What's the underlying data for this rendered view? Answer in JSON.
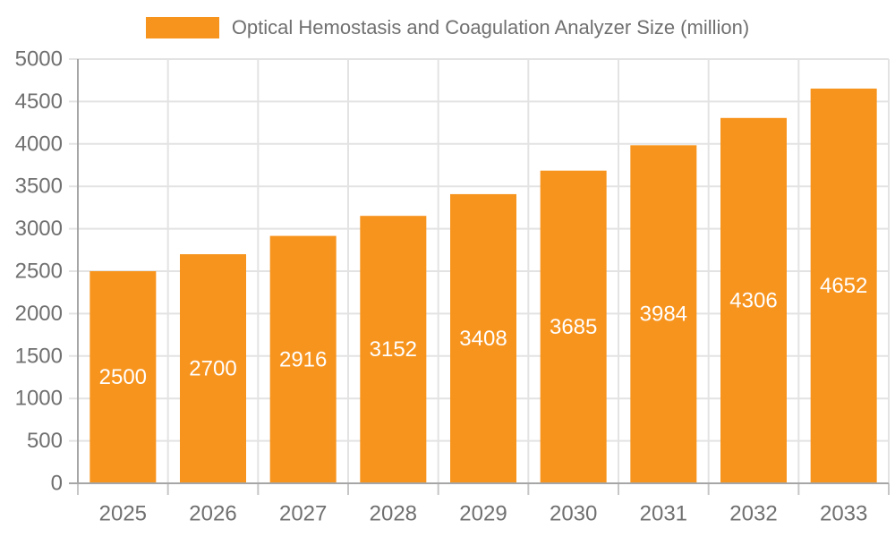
{
  "chart_data": {
    "type": "bar",
    "title": "Optical Hemostasis and Coagulation Analyzer Size (million)",
    "categories": [
      "2025",
      "2026",
      "2027",
      "2028",
      "2029",
      "2030",
      "2031",
      "2032",
      "2033"
    ],
    "values": [
      2500,
      2700,
      2916,
      3152,
      3408,
      3685,
      3984,
      4306,
      4652
    ],
    "xlabel": "",
    "ylabel": "",
    "ylim": [
      0,
      5000
    ],
    "y_ticks": [
      0,
      500,
      1000,
      1500,
      2000,
      2500,
      3000,
      3500,
      4000,
      4500,
      5000
    ],
    "grid": true,
    "legend_position": "top",
    "bar_labels_inside": true,
    "colors": {
      "bar": "#F7941E",
      "bar_label": "#FFFFFF",
      "axis_line": "#A6A6A6",
      "grid_line": "#E3E3E3",
      "tick_line": "#C6C6C6",
      "axis_text": "#707070",
      "background": "#FFFFFF"
    }
  }
}
